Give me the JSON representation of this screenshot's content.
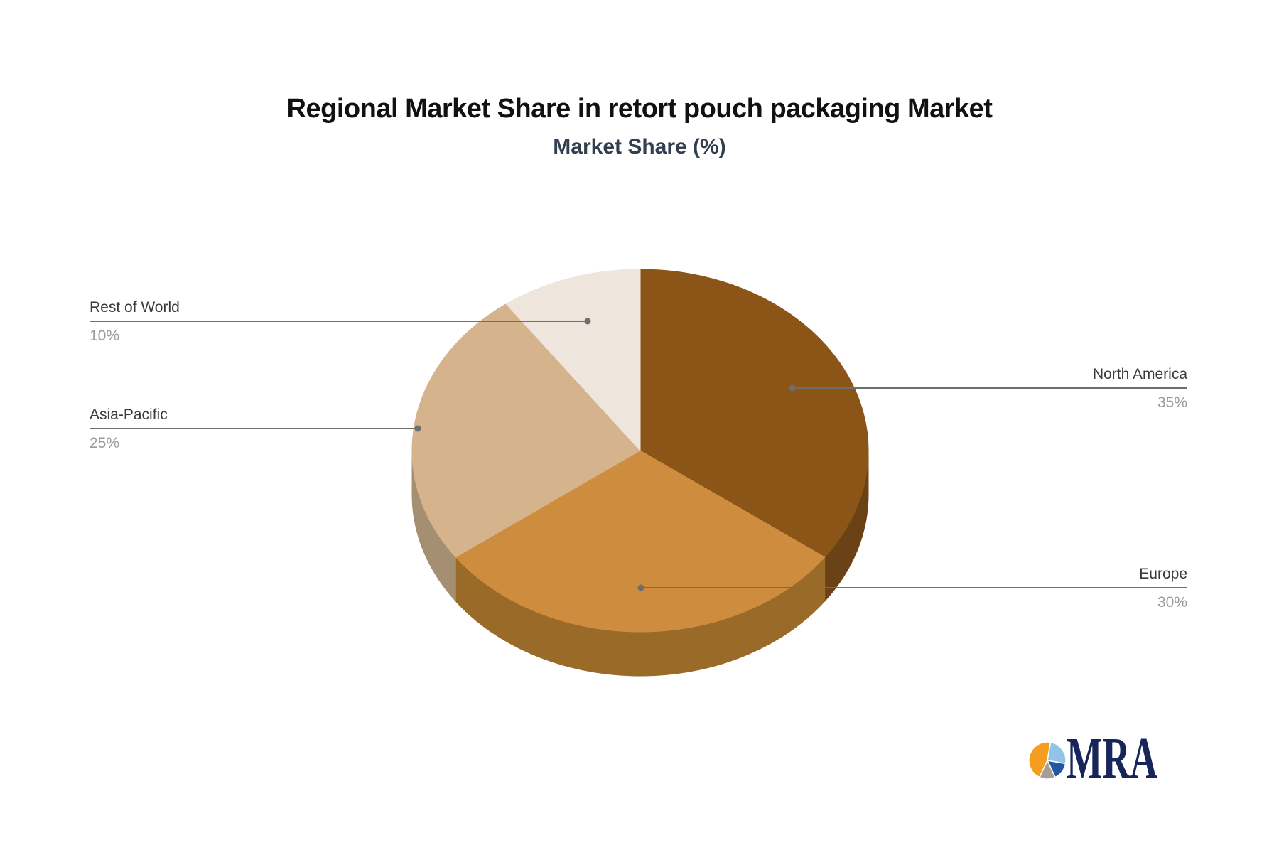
{
  "page": {
    "background": "#FFFFFF"
  },
  "chart_data": {
    "type": "pie",
    "title": "Regional Market Share in retort pouch packaging Market",
    "subtitle": "Market Share (%)",
    "value_unit": "%",
    "effect": "3d",
    "start_angle_deg": 0,
    "direction": "clockwise",
    "legend": "none",
    "total": 100,
    "series": [
      {
        "name": "North America",
        "value": 35,
        "percent_label": "35%",
        "label_side": "right",
        "top_color": "#8B5518",
        "side_color": "#6B4215"
      },
      {
        "name": "Europe",
        "value": 30,
        "percent_label": "30%",
        "label_side": "right",
        "top_color": "#CE8C3E",
        "side_color": "#9A6A28"
      },
      {
        "name": "Asia-Pacific",
        "value": 25,
        "percent_label": "25%",
        "label_side": "left",
        "top_color": "#D5B38C",
        "side_color": "#A58F72"
      },
      {
        "name": "Rest of World",
        "value": 10,
        "percent_label": "10%",
        "label_side": "left",
        "top_color": "#EEE5DD",
        "side_color": "#C9BDB2"
      }
    ],
    "colors": {
      "title_text": "#111111",
      "subtitle_text": "#333F4F",
      "label_text": "#3A3A3A",
      "percent_text": "#9A9A9A",
      "connector": "#6E6E6E"
    }
  },
  "logo": {
    "text": "MRA",
    "text_color": "#18255A",
    "icon_colors": {
      "orange": "#F59D20",
      "light_blue": "#90C4E9",
      "dark_blue": "#2456A6",
      "gray": "#A79D92"
    }
  }
}
